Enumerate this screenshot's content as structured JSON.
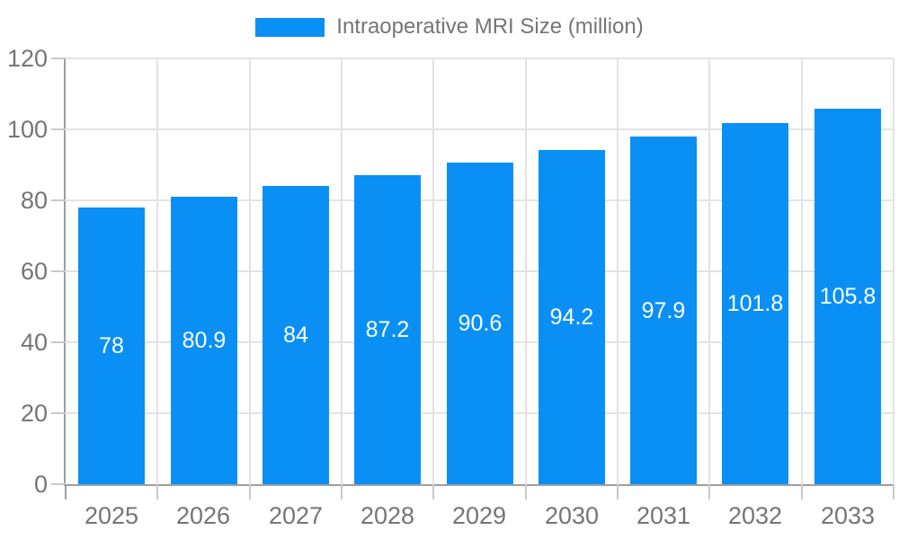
{
  "chart_data": {
    "type": "bar",
    "title": "Intraoperative MRI Size (million)",
    "series_name": "Intraoperative MRI Size (million)",
    "categories": [
      "2025",
      "2026",
      "2027",
      "2028",
      "2029",
      "2030",
      "2031",
      "2032",
      "2033"
    ],
    "values": [
      78,
      80.9,
      84,
      87.2,
      90.6,
      94.2,
      97.9,
      101.8,
      105.8
    ],
    "value_labels": [
      "78",
      "80.9",
      "84",
      "87.2",
      "90.6",
      "94.2",
      "97.9",
      "101.8",
      "105.8"
    ],
    "xlabel": "",
    "ylabel": "",
    "ylim": [
      0,
      120
    ],
    "ytick_step": 20,
    "ytick_labels": [
      "0",
      "20",
      "40",
      "60",
      "80",
      "100",
      "120"
    ],
    "grid": true,
    "legend_position": "top",
    "value_label_position": "inside-center",
    "colors": {
      "bar": "#0a90f5",
      "axis": "#9e9e9e",
      "gridline": "#e3e3e3",
      "tick": "#c9c9c9",
      "tick_label": "#757575",
      "value_label": "#ffffff",
      "legend_text": "#757575",
      "background": "#ffffff"
    }
  }
}
